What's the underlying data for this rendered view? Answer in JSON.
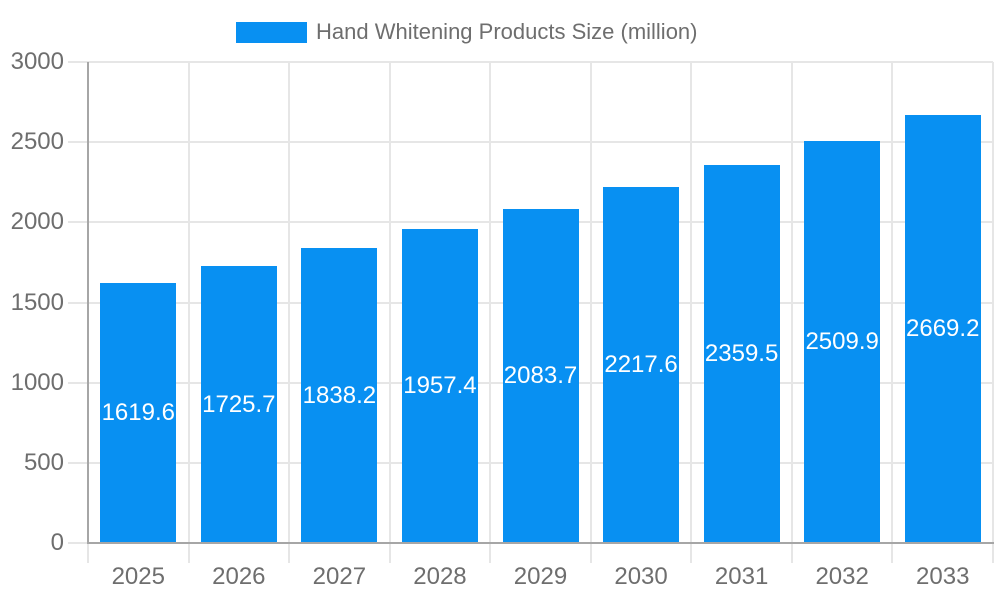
{
  "legend": {
    "label": "Hand Whitening Products Size (million)"
  },
  "chart_data": {
    "type": "bar",
    "title": "Hand Whitening Products Size (million)",
    "categories": [
      "2025",
      "2026",
      "2027",
      "2028",
      "2029",
      "2030",
      "2031",
      "2032",
      "2033"
    ],
    "series": [
      {
        "name": "Hand Whitening Products Size (million)",
        "values": [
          1619.6,
          1725.7,
          1838.2,
          1957.4,
          2083.7,
          2217.6,
          2359.5,
          2509.9,
          2669.2
        ]
      }
    ],
    "xlabel": "",
    "ylabel": "",
    "ylim": [
      0,
      3000
    ],
    "yticks": [
      0,
      500,
      1000,
      1500,
      2000,
      2500,
      3000
    ],
    "grid": true,
    "legend_position": "top",
    "value_labels": "white-centered-inside-bars"
  },
  "colors": {
    "bar": "#0890F2",
    "grid": "#E6E6E6",
    "axis": "#A6A6A6",
    "tick_text": "#6E6E6E",
    "legend_text": "#6E6E6E",
    "value_label": "#FFFFFF",
    "background": "#FFFFFF"
  }
}
